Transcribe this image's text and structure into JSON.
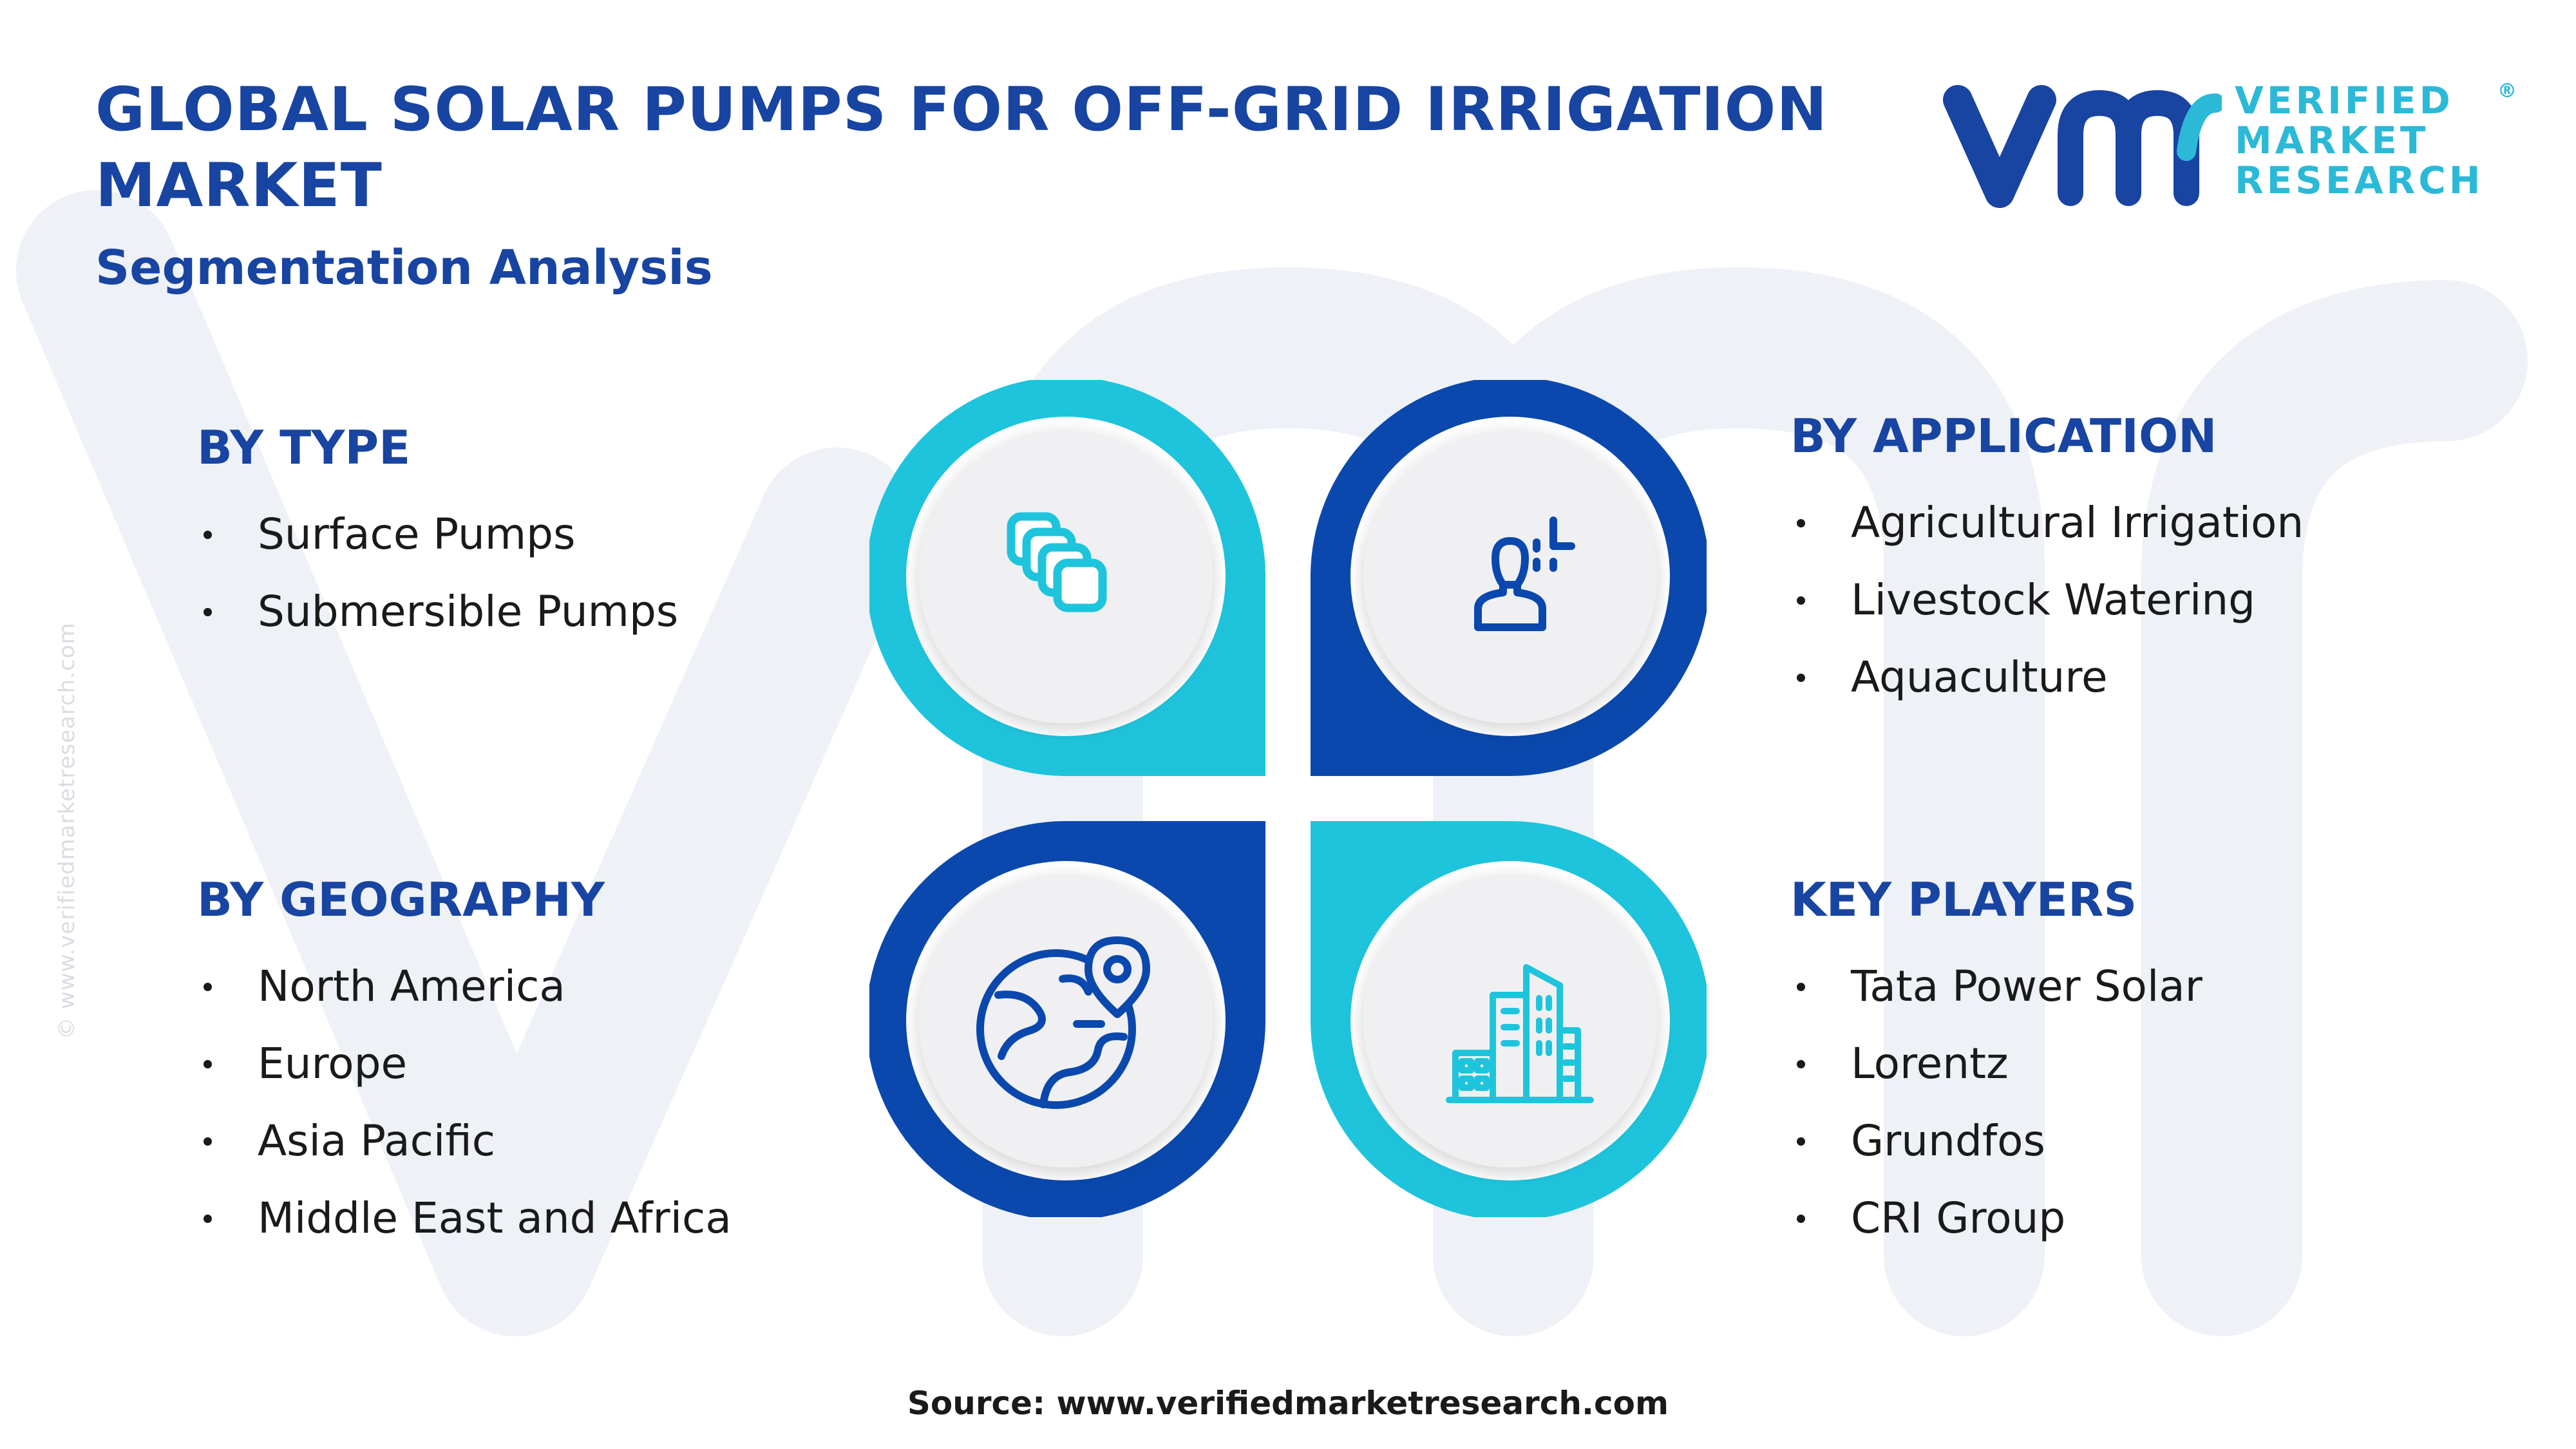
{
  "title": "GLOBAL SOLAR PUMPS FOR OFF-GRID IRRIGATION MARKET",
  "subtitle": "Segmentation Analysis",
  "logo": {
    "line1": "VERIFIED",
    "line2": "MARKET",
    "line3": "RESEARCH",
    "registered": "®"
  },
  "side_credit": "© www.verifiedmarketresearch.com",
  "segments": {
    "type": {
      "heading": "BY TYPE",
      "items": [
        "Surface Pumps",
        "Submersible Pumps"
      ],
      "icon": "layers-icon"
    },
    "application": {
      "heading": "BY APPLICATION",
      "items": [
        "Agricultural Irrigation",
        "Livestock Watering",
        "Aquaculture"
      ],
      "icon": "user-analytics-icon"
    },
    "geography": {
      "heading": "BY GEOGRAPHY",
      "items": [
        "North America",
        "Europe",
        "Asia Pacific",
        "Middle East and Africa"
      ],
      "icon": "globe-location-icon"
    },
    "players": {
      "heading": "KEY PLAYERS",
      "items": [
        "Tata Power Solar",
        "Lorentz",
        "Grundfos",
        "CRI Group"
      ],
      "icon": "buildings-icon"
    }
  },
  "source": "Source: www.verifiedmarketresearch.com",
  "colors": {
    "navy": "#1844a2",
    "dark_blue": "#0a48ad",
    "cyan": "#1ec4dc",
    "text": "#1a1a1a",
    "circle_fill": "#f0f0f2"
  }
}
